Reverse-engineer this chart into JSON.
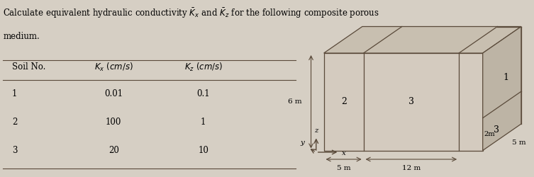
{
  "bg_color": "#d6cfc4",
  "title_line1": "Calculate equivalent hydraulic conductivity $\\bar{K}_x$ and $\\bar{K}_z$ for the following composite porous",
  "title_line2": "medium.",
  "table_headers": [
    "Soil No.",
    "$K_x\\ (cm/s)$",
    "$K_z\\ (cm/s)$"
  ],
  "table_rows": [
    [
      "1",
      "0.01",
      "0.1"
    ],
    [
      "2",
      "100",
      "1"
    ],
    [
      "3",
      "20",
      "10"
    ]
  ],
  "box_color": "#c8bfb0",
  "line_color": "#5a4a3a",
  "dim_labels": {
    "height": "6 m",
    "width_left": "5 m",
    "width_right": "12 m",
    "depth": "5 m",
    "inner_height": "2m"
  },
  "soil_labels": [
    "1",
    "2",
    "3"
  ],
  "axis_labels": [
    "z",
    "y",
    "x"
  ]
}
